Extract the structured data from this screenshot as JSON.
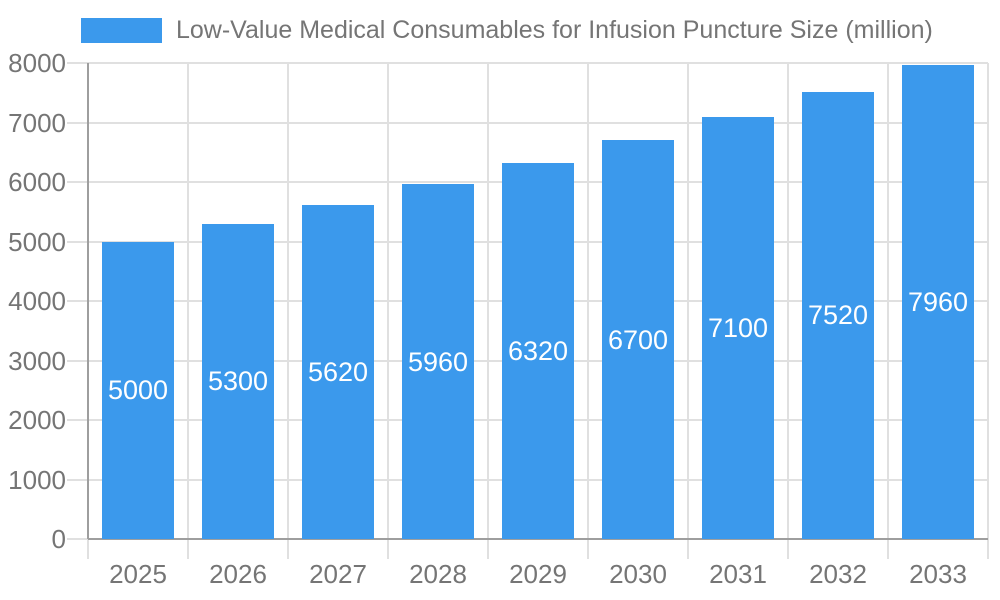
{
  "colors": {
    "bar": "#3b99ec",
    "grid": "#e0e0e0",
    "axis": "#9e9e9e",
    "text": "#757575",
    "bar_label": "#ffffff",
    "background": "#ffffff"
  },
  "chart_data": {
    "type": "bar",
    "title": "Low-Value Medical Consumables for Infusion Puncture Size (million)",
    "categories": [
      "2025",
      "2026",
      "2027",
      "2028",
      "2029",
      "2030",
      "2031",
      "2032",
      "2033"
    ],
    "values": [
      5000,
      5300,
      5620,
      5960,
      6320,
      6700,
      7100,
      7520,
      7960
    ],
    "xlabel": "",
    "ylabel": "",
    "ylim": [
      0,
      8000
    ],
    "ytick_step": 1000,
    "grid": true,
    "legend_position": "top",
    "value_labels": "inside-center"
  }
}
